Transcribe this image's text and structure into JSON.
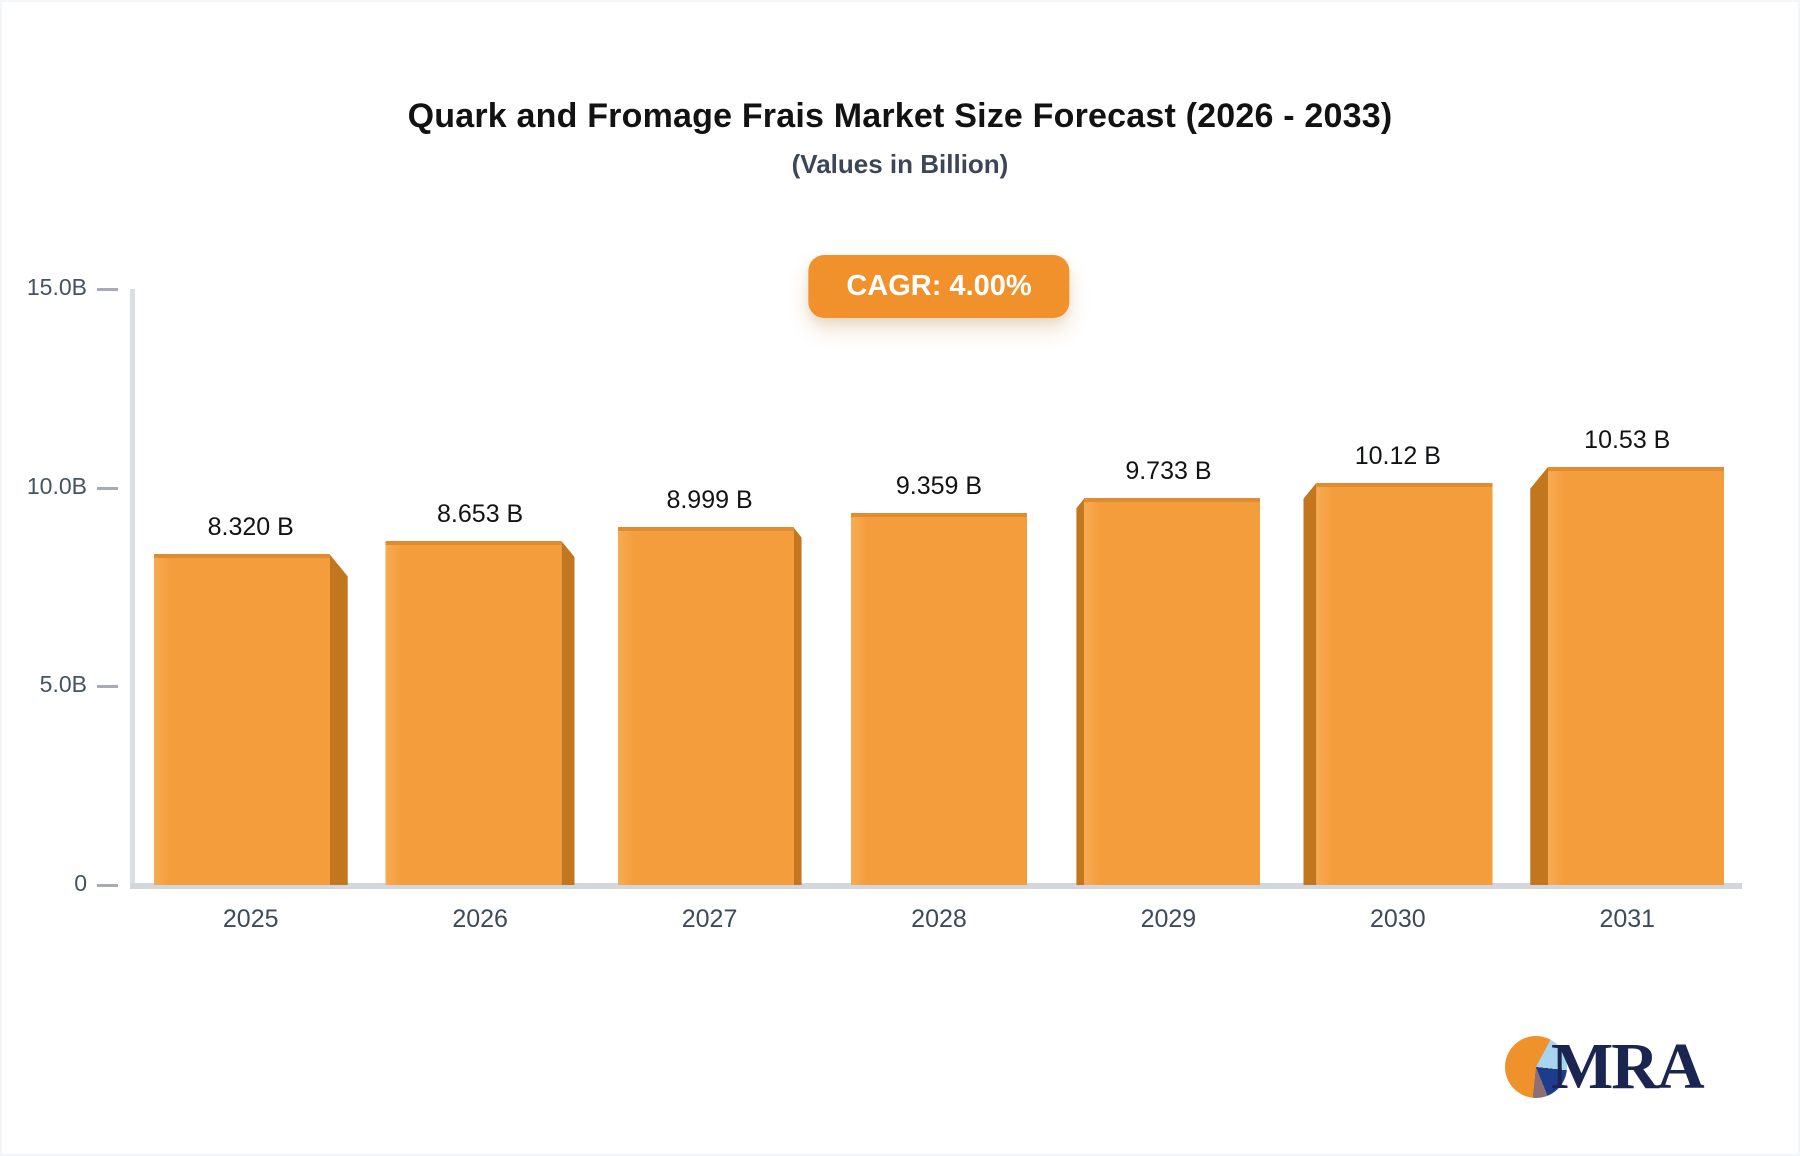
{
  "header": {
    "title": "Quark and Fromage Frais Market Size Forecast (2026 - 2033)",
    "subtitle": "(Values in Billion)"
  },
  "badge": {
    "label": "CAGR: 4.00%",
    "color": "#f0912c"
  },
  "chart_data": {
    "type": "bar",
    "title": "Quark and Fromage Frais Market Size Forecast (2026 - 2033)",
    "subtitle": "(Values in Billion)",
    "categories": [
      "2025",
      "2026",
      "2027",
      "2028",
      "2029",
      "2030",
      "2031"
    ],
    "values": [
      8.32,
      8.653,
      8.999,
      9.359,
      9.733,
      10.12,
      10.53
    ],
    "value_labels": [
      "8.320 B",
      "8.653 B",
      "8.999 B",
      "9.359 B",
      "9.733 B",
      "10.12 B",
      "10.53 B"
    ],
    "xlabel": "",
    "ylabel": "",
    "ylim": [
      0,
      15
    ],
    "yticks": [
      {
        "label": "0",
        "value": 0
      },
      {
        "label": "5.0B",
        "value": 5
      },
      {
        "label": "10.0B",
        "value": 10
      },
      {
        "label": "15.0B",
        "value": 15
      }
    ],
    "grid": false,
    "legend": "none",
    "bar_color": "#f49d3d",
    "bar_side_color": "#c2761e",
    "bar_top_edge_color": "#e08d31"
  },
  "logo": {
    "text": "MRA",
    "text_color": "#1a2550",
    "pie_colors": [
      "#f0922b",
      "#a8d4f0",
      "#1e3c8c",
      "#8e6f72"
    ]
  }
}
